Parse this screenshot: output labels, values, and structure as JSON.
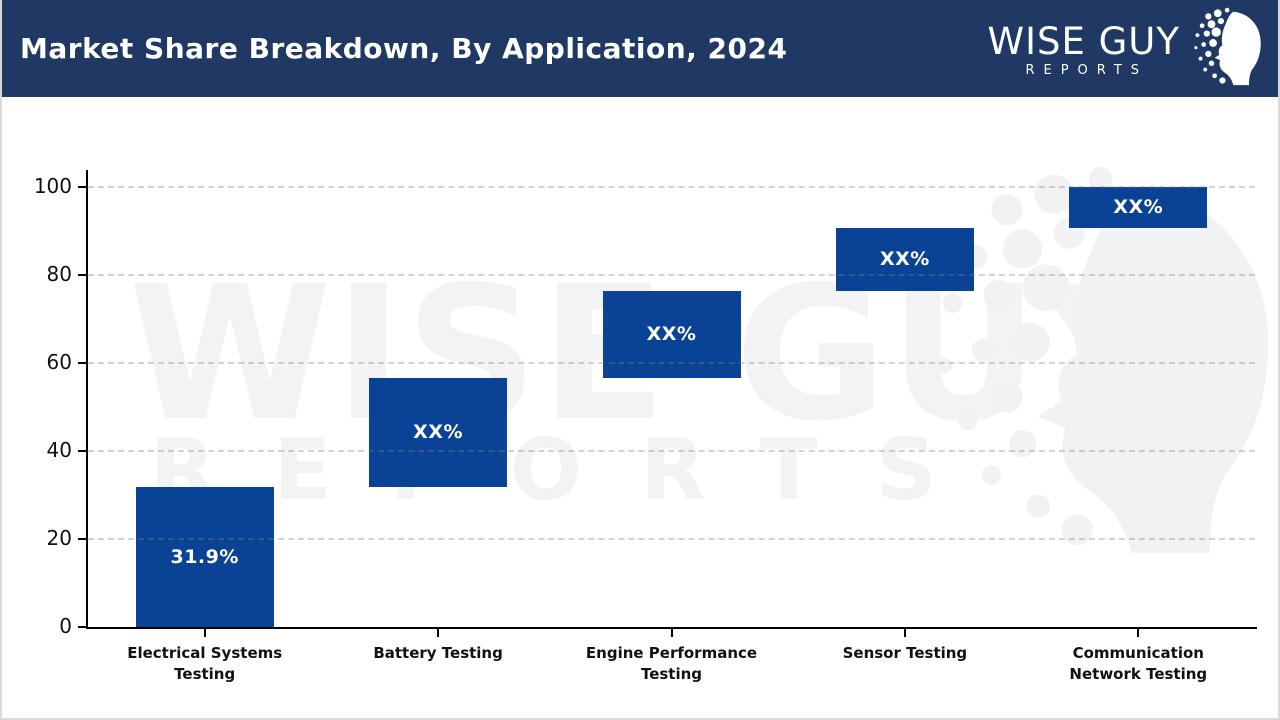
{
  "header": {
    "title": "Market Share Breakdown, By Application, 2024",
    "bg_color": "#1f3864",
    "logo": {
      "wordmark": "WISE GUY",
      "subtext": "REPORTS"
    }
  },
  "watermark": {
    "wordmark": "WISE GUY",
    "subtext": "REPORTS"
  },
  "chart_data": {
    "type": "bar",
    "subtype": "waterfall",
    "title": "Market Share Breakdown, By Application, 2024",
    "categories": [
      "Electrical Systems\nTesting",
      "Battery Testing",
      "Engine Performance\nTesting",
      "Sensor Testing",
      "Communication\nNetwork Testing"
    ],
    "segments": [
      {
        "category": "Electrical Systems Testing",
        "start": 0,
        "end": 31.9,
        "label": "31.9%"
      },
      {
        "category": "Battery Testing",
        "start": 31.9,
        "end": 56.6,
        "label": "XX%"
      },
      {
        "category": "Engine Performance Testing",
        "start": 56.6,
        "end": 76.4,
        "label": "XX%"
      },
      {
        "category": "Sensor Testing",
        "start": 76.4,
        "end": 90.7,
        "label": "XX%"
      },
      {
        "category": "Communication Network Testing",
        "start": 90.7,
        "end": 100,
        "label": "XX%"
      }
    ],
    "ylim": [
      0,
      100
    ],
    "yticks": [
      0,
      20,
      40,
      60,
      80,
      100
    ],
    "grid": "horizontal-dashed",
    "legend": "none",
    "bar_color": "#0a4296",
    "bar_label_color": "#ffffff",
    "axis_color": "#000000"
  }
}
